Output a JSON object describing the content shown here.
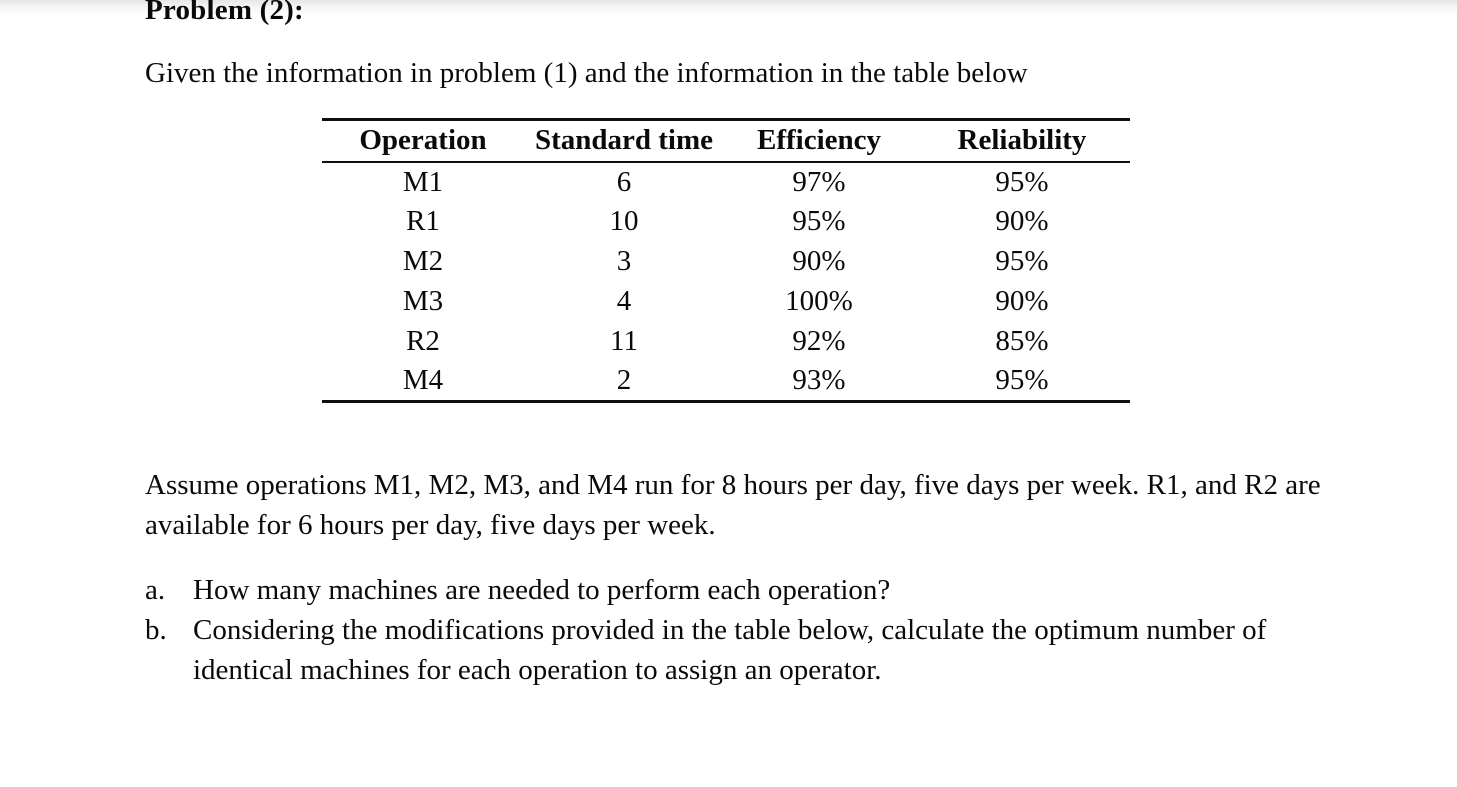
{
  "page": {
    "title": "Problem (2):",
    "intro": "Given the information in problem (1) and the information in the table below"
  },
  "table": {
    "headers": [
      "Operation",
      "Standard time",
      "Efficiency",
      "Reliability"
    ],
    "rows": [
      [
        "M1",
        "6",
        "97%",
        "95%"
      ],
      [
        "R1",
        "10",
        "95%",
        "90%"
      ],
      [
        "M2",
        "3",
        "90%",
        "95%"
      ],
      [
        "M3",
        "4",
        "100%",
        "90%"
      ],
      [
        "R2",
        "11",
        "92%",
        "85%"
      ],
      [
        "M4",
        "2",
        "93%",
        "95%"
      ]
    ]
  },
  "paragraph": "Assume operations M1, M2, M3, and M4 run for 8 hours per day, five days per week. R1, and R2 are available for 6 hours per day, five days per week.",
  "questions": [
    {
      "label": "a.",
      "text": "How many machines are needed to perform each operation?"
    },
    {
      "label": "b.",
      "text": "Considering the modifications provided in the table below, calculate the optimum number of identical machines for each operation to assign an operator."
    }
  ]
}
